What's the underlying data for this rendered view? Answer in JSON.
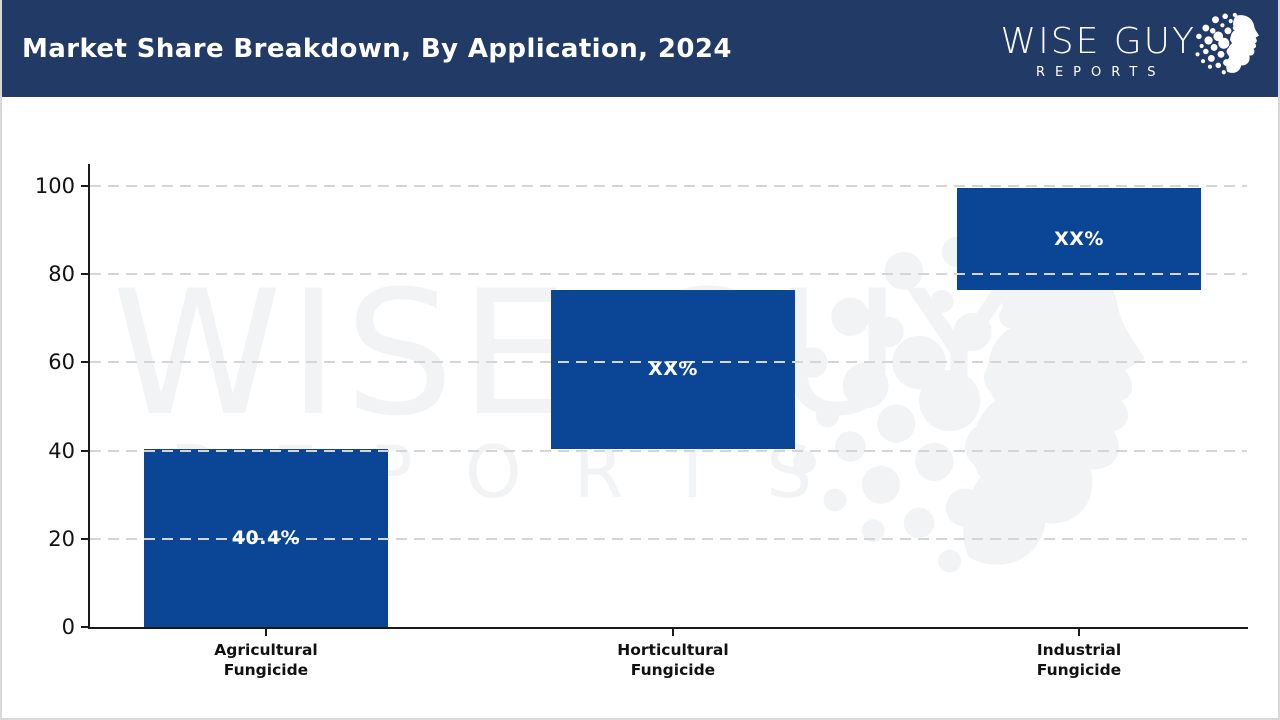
{
  "header": {
    "title": "Market Share Breakdown, By Application, 2024",
    "background_color": "#213a66",
    "logo": {
      "wordmark": "WISE GUY",
      "tagline": "REPORTS",
      "icon": "dotted-face-profile-icon",
      "color": "#ffffff"
    }
  },
  "watermark": {
    "wordmark": "WISE GUY",
    "tagline": "REPORTS",
    "icon": "dotted-face-profile-icon",
    "color": "#f2f3f5"
  },
  "chart_data": {
    "type": "bar",
    "variant": "waterfall",
    "title": "Market Share Breakdown, By Application, 2024",
    "categories": [
      "Agricultural Fungicide",
      "Horticultural Fungicide",
      "Industrial Fungicide"
    ],
    "segments": [
      {
        "category": "Agricultural Fungicide",
        "label": "40.4%",
        "start": 0,
        "end": 40.4
      },
      {
        "category": "Horticultural Fungicide",
        "label": "XX%",
        "start": 40.4,
        "end": 76.4
      },
      {
        "category": "Industrial Fungicide",
        "label": "XX%",
        "start": 76.4,
        "end": 99.5
      }
    ],
    "yticks": [
      0,
      20,
      40,
      60,
      80,
      100
    ],
    "ylim": [
      0,
      105
    ],
    "xlabel": "",
    "ylabel": "",
    "grid": "horizontal-dashed",
    "legend": "none",
    "bar_color": "#0a4596",
    "bar_label_color": "#ffffff",
    "axis_color": "#1a1a1a",
    "gridline_color": "#d5d5d5"
  }
}
